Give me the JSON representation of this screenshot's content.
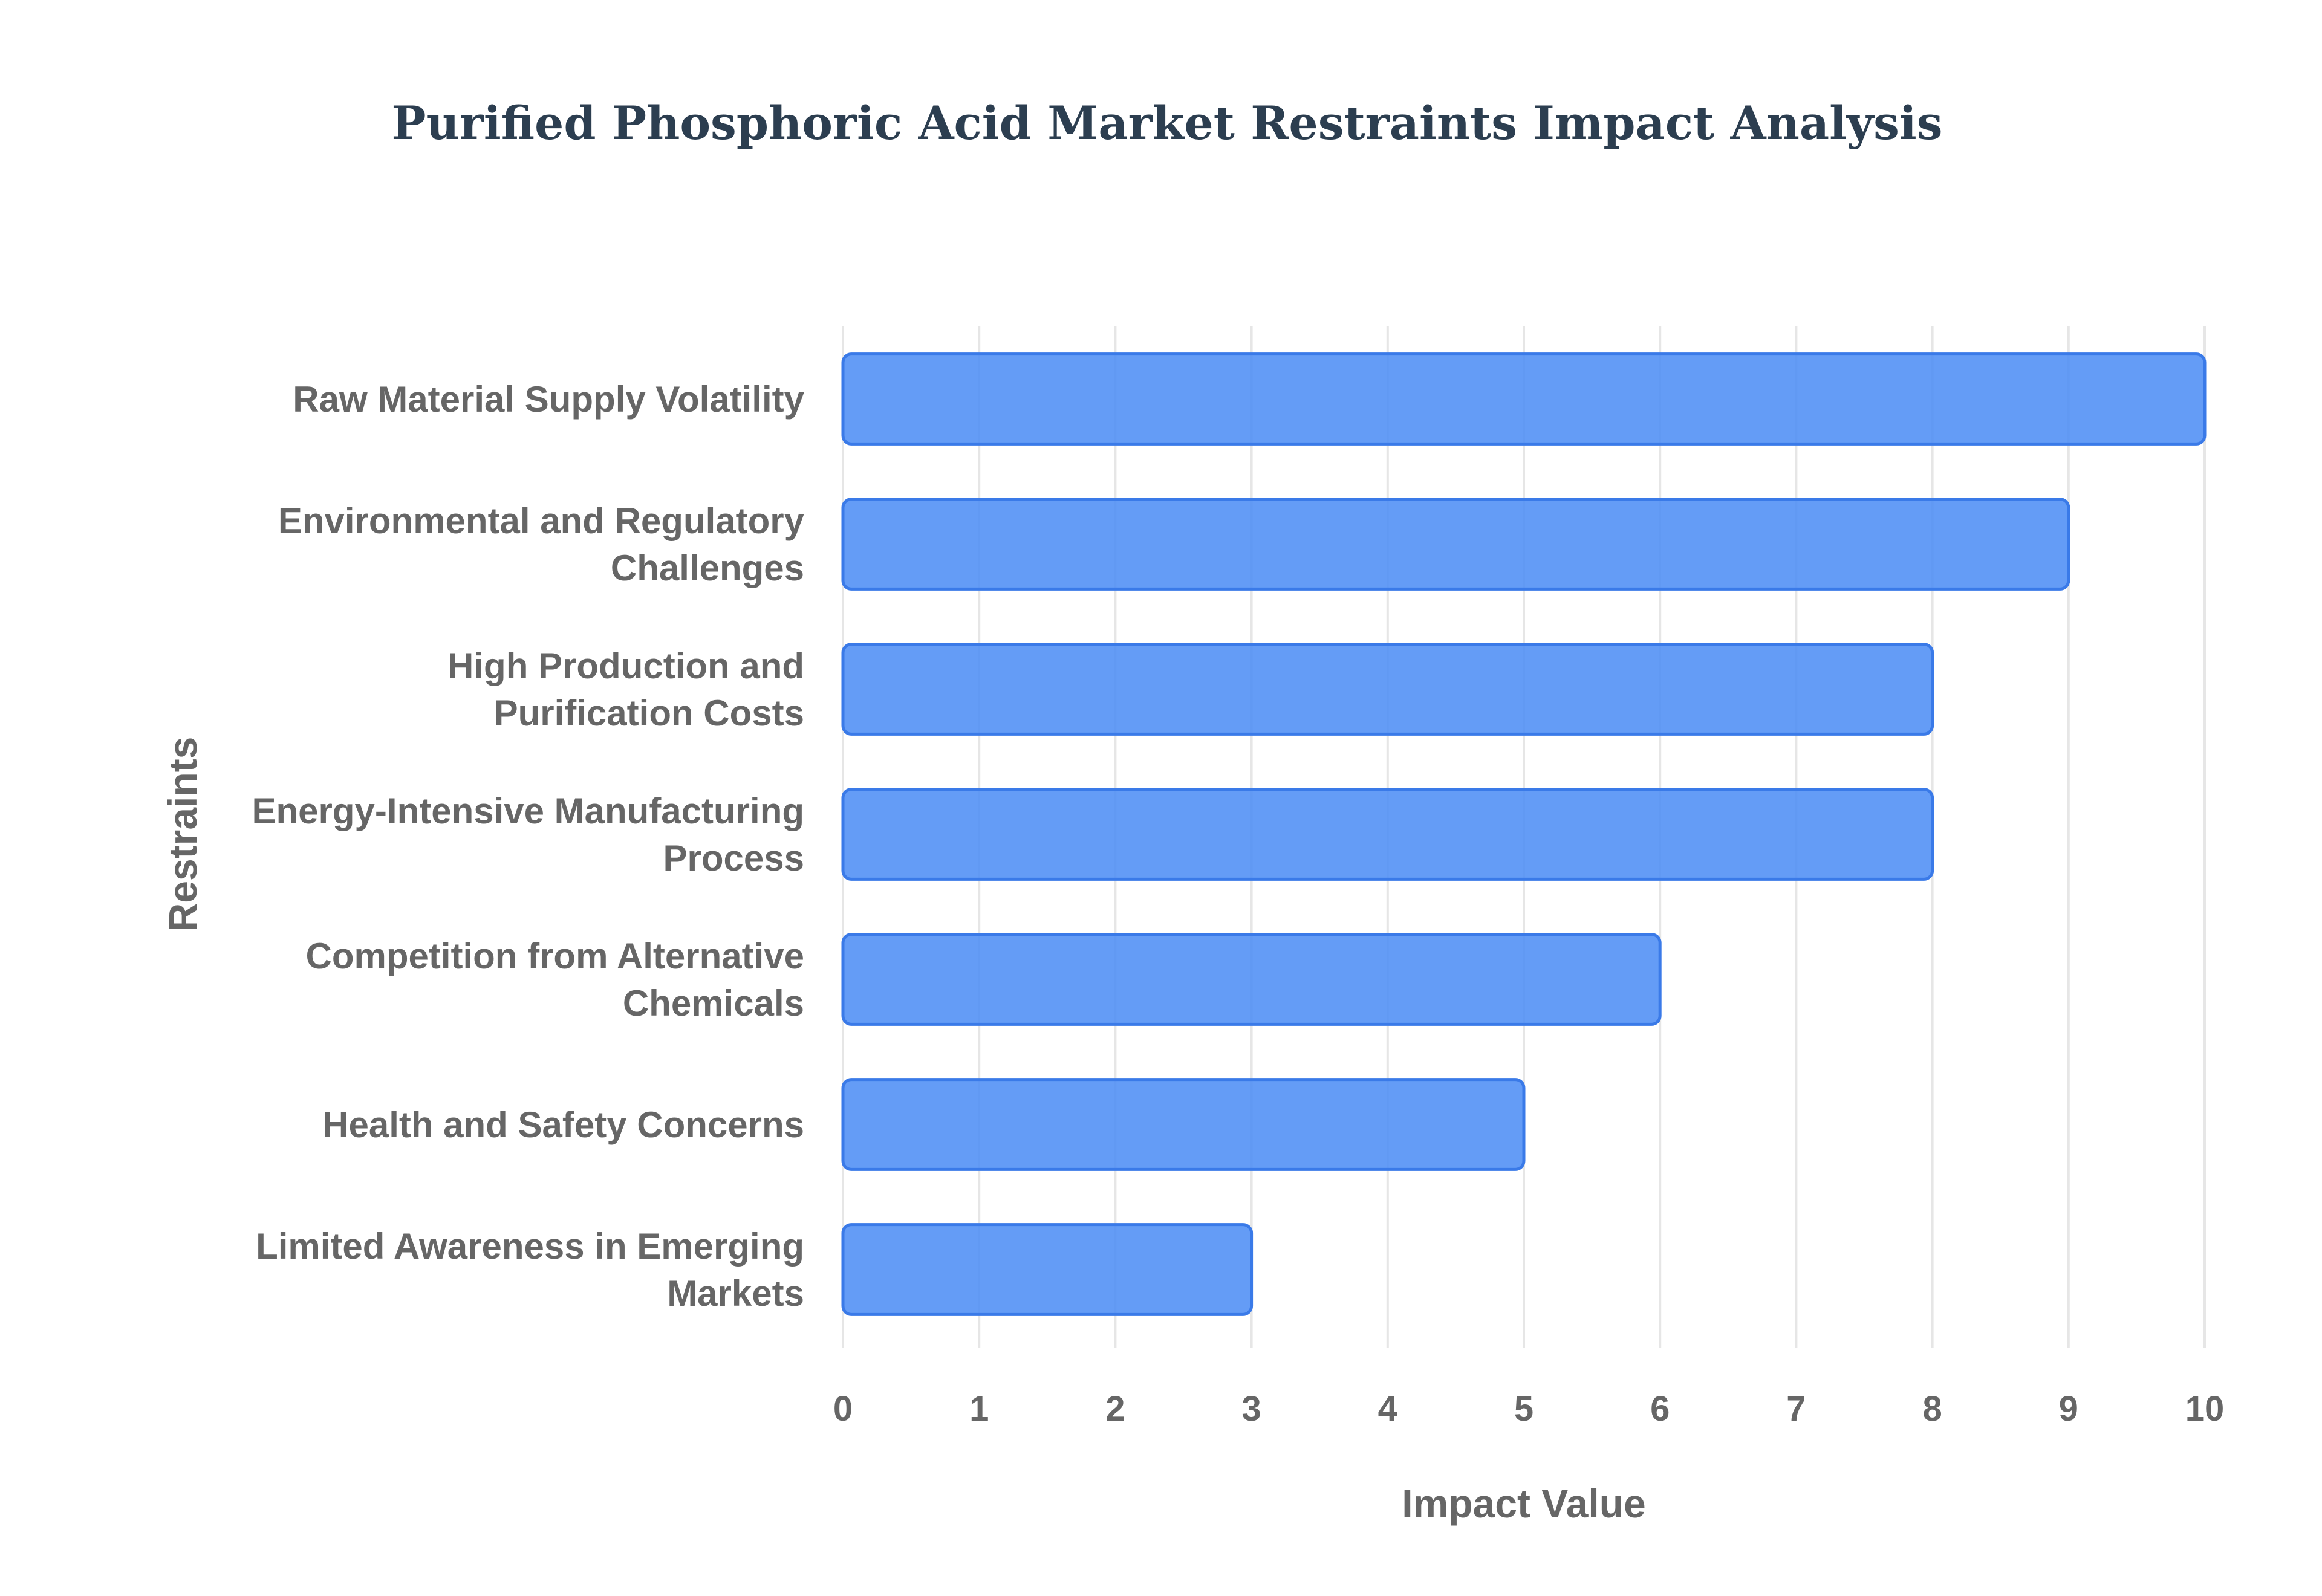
{
  "chart_data": {
    "type": "bar",
    "orientation": "horizontal",
    "title": "Purified Phosphoric Acid Market Restraints Impact Analysis",
    "xlabel": "Impact Value",
    "ylabel": "Restraints",
    "categories": [
      [
        "Raw Material Supply Volatility"
      ],
      [
        "Environmental and Regulatory",
        "Challenges"
      ],
      [
        "High Production and",
        "Purification Costs"
      ],
      [
        "Energy-Intensive Manufacturing",
        "Process"
      ],
      [
        "Competition from Alternative",
        "Chemicals"
      ],
      [
        "Health and Safety Concerns"
      ],
      [
        "Limited Awareness in Emerging",
        "Markets"
      ]
    ],
    "values": [
      10,
      9,
      8,
      8,
      6,
      5,
      3
    ],
    "xlim": [
      0,
      10
    ],
    "xticks": [
      "0",
      "1",
      "2",
      "3",
      "4",
      "5",
      "6",
      "7",
      "8",
      "9",
      "10"
    ],
    "grid": true,
    "legend": "none",
    "bar_color": "#4f8ef5",
    "bar_border_color": "#3a7ae8"
  }
}
